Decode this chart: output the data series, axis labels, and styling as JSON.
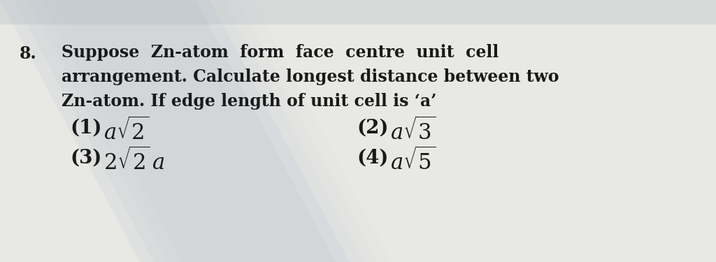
{
  "bg_base": "#e8e8e4",
  "bg_stripe_color": "#b8c4d0",
  "text_color": "#1a1a1a",
  "question_number": "8.",
  "line1": "Suppose  Zn-atom  form  face  centre  unit  cell",
  "line2": "arrangement. Calculate longest distance between two",
  "line3": "Zn-atom. If edge length of unit cell is ‘a’",
  "opt1_num": "(1)",
  "opt1_math": "$a\\sqrt{2}$",
  "opt2_num": "(2)",
  "opt2_math": "$a\\sqrt{3}$",
  "opt3_num": "(3)",
  "opt3_math": "$2\\sqrt{2}\\,a$",
  "opt4_num": "(4)",
  "opt4_math": "$a\\sqrt{5}$",
  "font_size_q": 17,
  "font_size_opt": 20
}
